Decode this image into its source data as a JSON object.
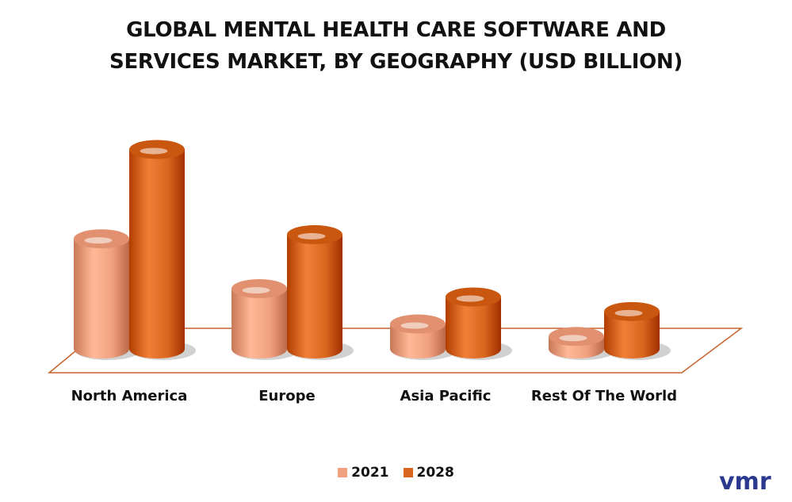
{
  "chart_data": {
    "type": "bar",
    "title": "GLOBAL MENTAL HEALTH CARE SOFTWARE AND SERVICES MARKET, BY GEOGRAPHY (USD BILLION)",
    "title_lines": [
      "GLOBAL MENTAL HEALTH CARE SOFTWARE AND",
      "SERVICES MARKET, BY GEOGRAPHY (USD BILLION)"
    ],
    "categories": [
      "North America",
      "Europe",
      "Asia Pacific",
      "Rest Of The World"
    ],
    "series": [
      {
        "name": "2021",
        "values": [
          5.3,
          2.9,
          1.2,
          0.6
        ],
        "color": "#f0a07f"
      },
      {
        "name": "2028",
        "values": [
          9.6,
          5.5,
          2.5,
          1.8
        ],
        "color": "#d9661e"
      }
    ],
    "xlabel": "",
    "ylabel": "",
    "ylim": [
      0,
      10
    ],
    "grid": false,
    "legend_position": "bottom"
  },
  "logo": {
    "text": "vmr",
    "color": "#2b3a8f"
  }
}
